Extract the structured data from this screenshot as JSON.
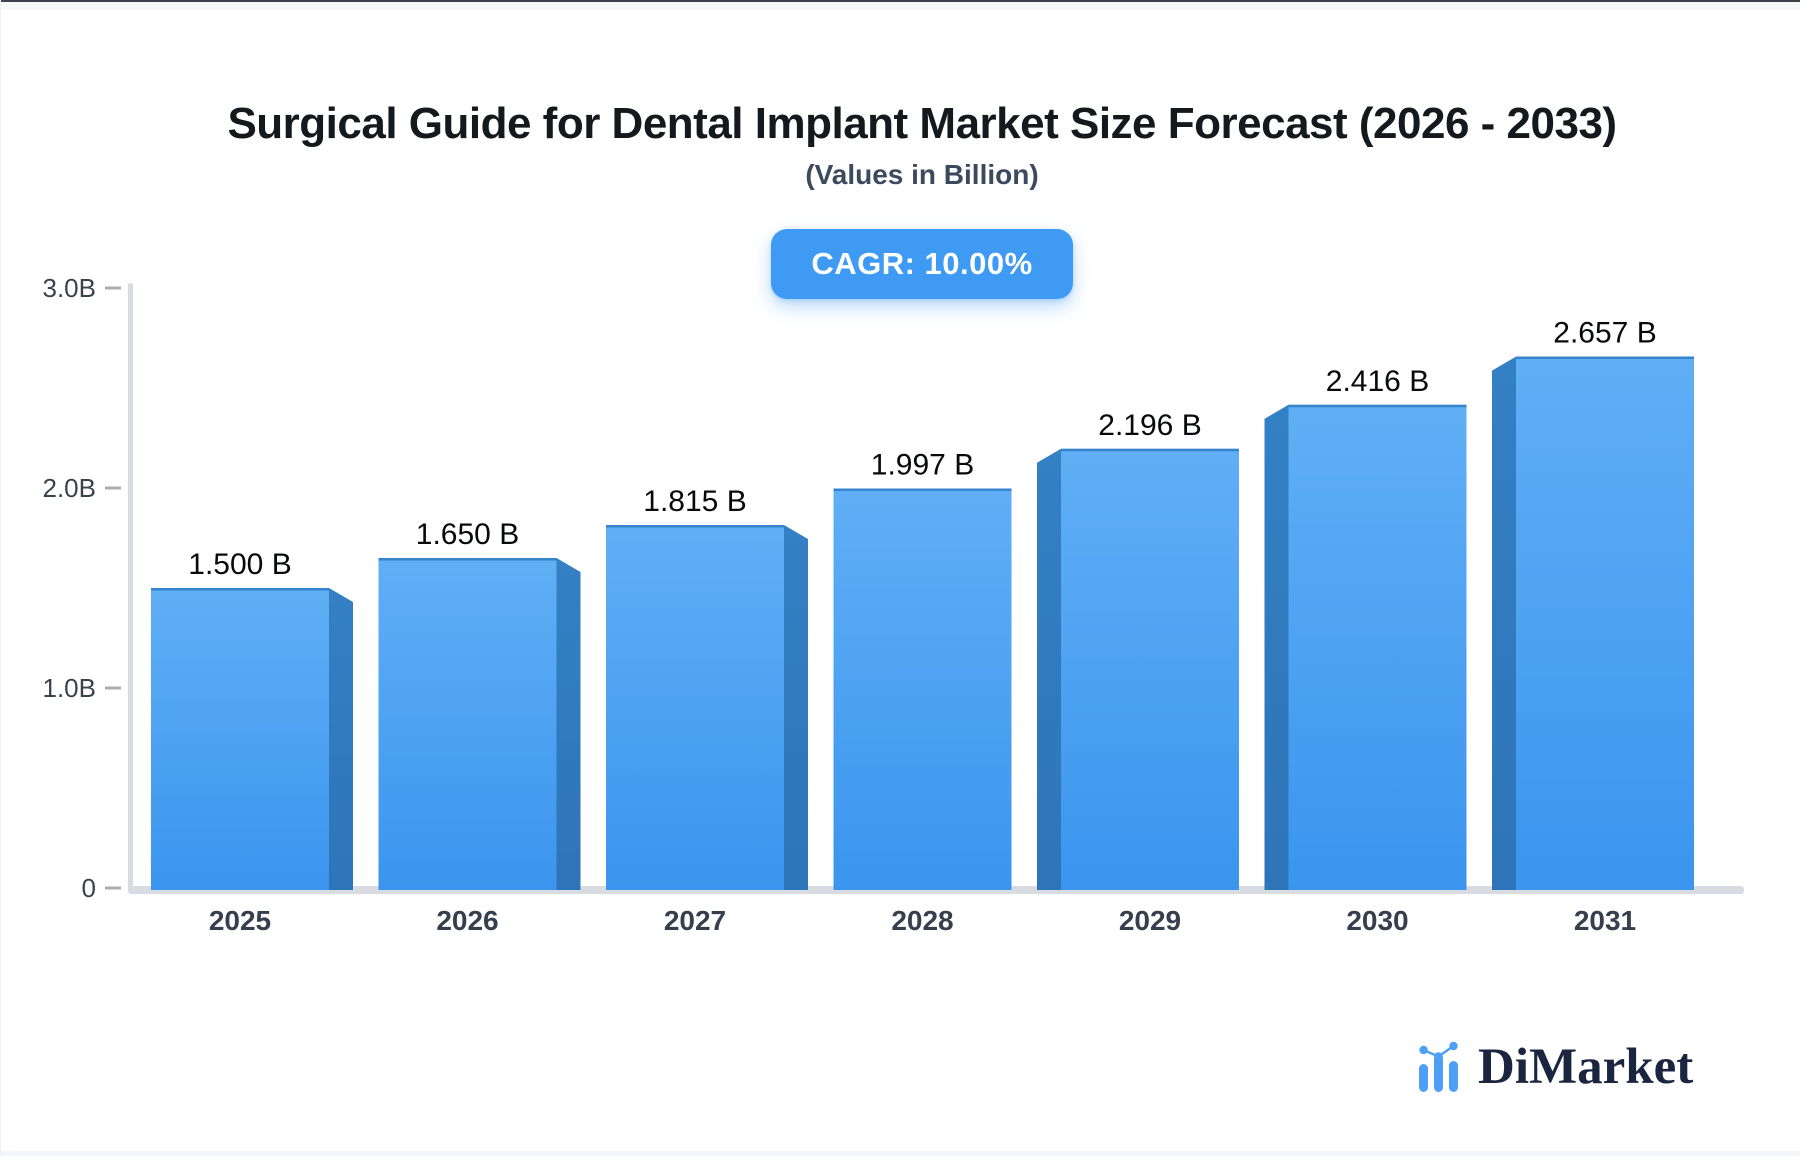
{
  "header": {
    "title": "Surgical Guide for Dental Implant Market Size Forecast (2026 - 2033)",
    "subtitle": "(Values in Billion)",
    "cagr_badge": "CAGR: 10.00%"
  },
  "chart_data": {
    "type": "bar",
    "title": "Surgical Guide for Dental Implant Market Size Forecast (2026 - 2033)",
    "subtitle": "(Values in Billion)",
    "cagr": "10.00%",
    "categories": [
      "2025",
      "2026",
      "2027",
      "2028",
      "2029",
      "2030",
      "2031"
    ],
    "values": [
      1.5,
      1.65,
      1.815,
      1.997,
      2.196,
      2.416,
      2.657
    ],
    "value_labels": [
      "1.500 B",
      "1.650 B",
      "1.815 B",
      "1.997 B",
      "2.196 B",
      "2.416 B",
      "2.657 B"
    ],
    "xlabel": "",
    "ylabel": "",
    "ylim": [
      0,
      3.0
    ],
    "yticks": [
      0,
      1.0,
      2.0,
      3.0
    ],
    "ytick_labels": [
      "0",
      "1.0B",
      "2.0B",
      "3.0B"
    ],
    "grid": false,
    "legend": "none",
    "style": "3d-bars-center-perspective",
    "colors": {
      "bar_face_top": "#60aff6",
      "bar_face_bottom": "#3b95ee",
      "bar_top_edge": "#3584cc",
      "bar_side": "#2e74b8",
      "axis": "#d8dce1",
      "tick_dash": "#a9aeb6",
      "tick_label": "#39434e",
      "category_label": "#353f4d",
      "value_label": "#07090c",
      "badge_bg": "#3e9af3"
    }
  },
  "logo": {
    "text": "DiMarket",
    "icon": "mini-bar-chart-icon",
    "text_color": "#1a2540",
    "accent_color": "#4da0f5"
  }
}
